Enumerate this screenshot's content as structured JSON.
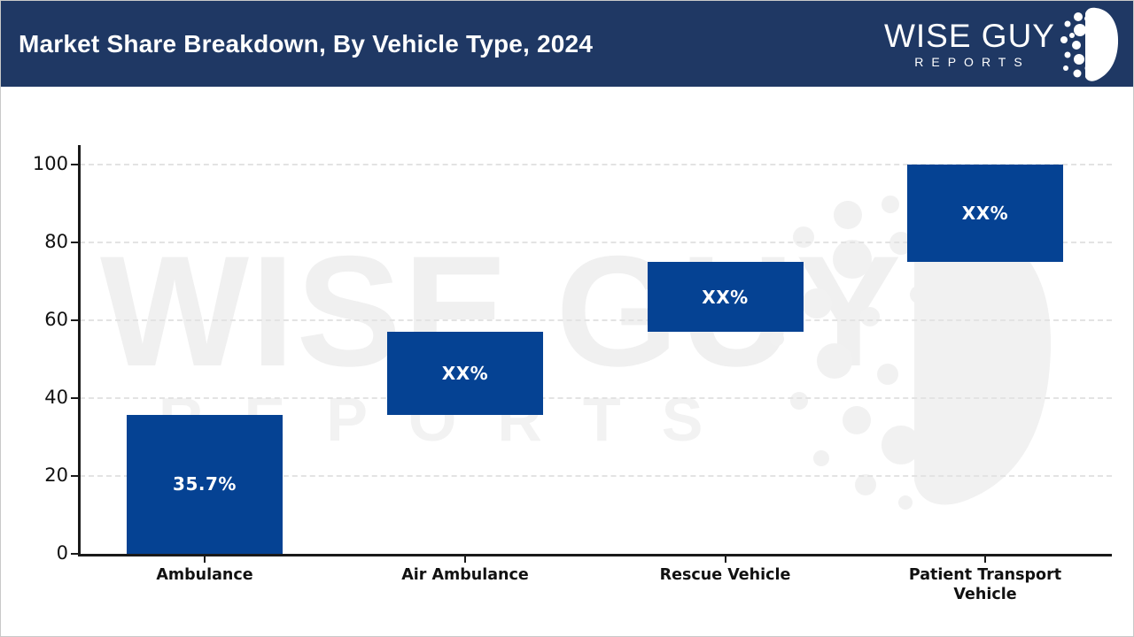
{
  "header": {
    "title": "Market Share Breakdown, By Vehicle Type, 2024",
    "bg_color": "#1f3864",
    "logo": {
      "line1": "WISE GUY",
      "line2": "REPORTS"
    }
  },
  "watermark": {
    "line1": "WISE GUY",
    "line2": "REPORTS"
  },
  "chart_data": {
    "type": "bar",
    "subtype": "waterfall",
    "title": "Market Share Breakdown, By Vehicle Type, 2024",
    "categories": [
      "Ambulance",
      "Air Ambulance",
      "Rescue Vehicle",
      "Patient Transport Vehicle"
    ],
    "segments": [
      {
        "category": "Ambulance",
        "start": 0,
        "end": 35.7,
        "label": "35.7%"
      },
      {
        "category": "Air Ambulance",
        "start": 35.7,
        "end": 57.1,
        "label": "XX%"
      },
      {
        "category": "Rescue Vehicle",
        "start": 57.1,
        "end": 74.9,
        "label": "XX%"
      },
      {
        "category": "Patient Transport Vehicle",
        "start": 74.9,
        "end": 100,
        "label": "XX%"
      }
    ],
    "xlabel": "",
    "ylabel": "",
    "ylim": [
      0,
      100
    ],
    "yticks": [
      0,
      20,
      40,
      60,
      80,
      100
    ],
    "grid": "horizontal-dashed",
    "legend": "none",
    "bar_color": "#054293",
    "bar_label_color": "#ffffff",
    "axis_color": "#1a1a1a",
    "gridline_color": "#e3e3e3"
  }
}
